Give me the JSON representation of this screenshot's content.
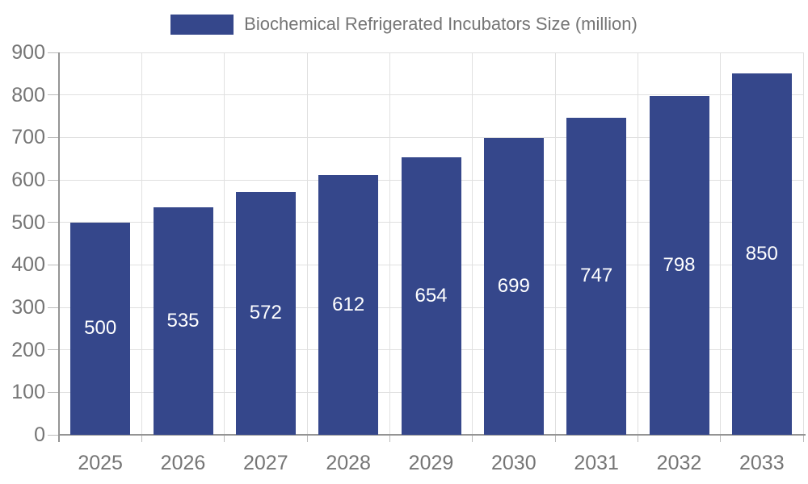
{
  "chart_data": {
    "type": "bar",
    "title": "Biochemical Refrigerated Incubators Size (million)",
    "categories": [
      "2025",
      "2026",
      "2027",
      "2028",
      "2029",
      "2030",
      "2031",
      "2032",
      "2033"
    ],
    "values": [
      500,
      535,
      572,
      612,
      654,
      699,
      747,
      798,
      850
    ],
    "series": [
      {
        "name": "Biochemical Refrigerated Incubators Size (million)",
        "values": [
          500,
          535,
          572,
          612,
          654,
          699,
          747,
          798,
          850
        ]
      }
    ],
    "xlabel": "",
    "ylabel": "",
    "ylim": [
      0,
      900
    ],
    "ytick_interval": 100,
    "yticks": [
      0,
      100,
      200,
      300,
      400,
      500,
      600,
      700,
      800,
      900
    ],
    "grid": true,
    "legend_position": "top-center",
    "value_labels": "inside-center-white",
    "colors": {
      "bar": "#35478b",
      "value_label": "#ffffff",
      "axis_label": "#757575",
      "gridline": "#e0e0e0",
      "tick": "#bbbbbb",
      "axis_line": "#949494",
      "background": "#ffffff"
    }
  }
}
